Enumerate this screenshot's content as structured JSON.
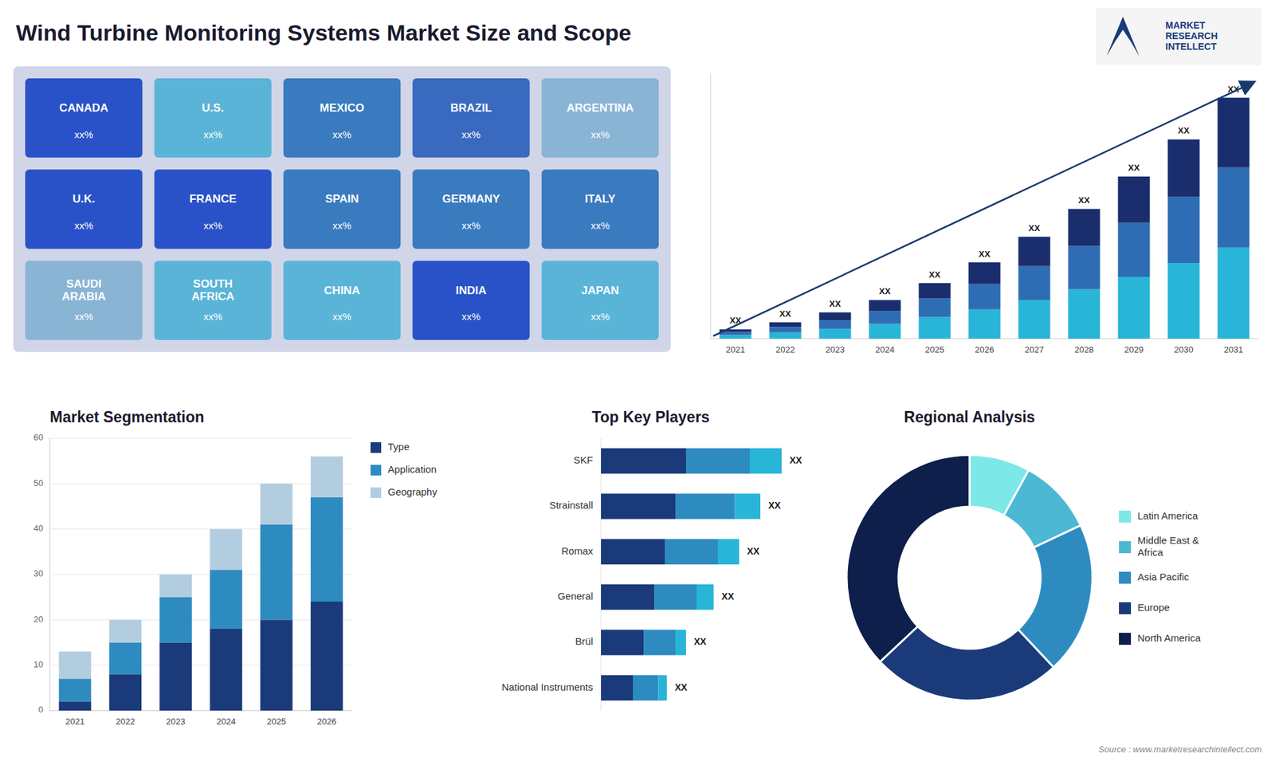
{
  "title": "Wind Turbine Monitoring Systems Market Size and Scope",
  "annotations": [
    "Source : www.marketresearchintellect.com",
    "MARKET\nRESEARCH\nINTELLECT"
  ],
  "chart_data": [
    {
      "type": "map",
      "color": "#d0d5e8",
      "categories": [
        "CANADA",
        "U.S.",
        "MEXICO",
        "BRAZIL",
        "ARGENTINA",
        "U.K.",
        "FRANCE",
        "SPAIN",
        "GERMANY",
        "ITALY",
        "SAUDI\nARABIA",
        "SOUTH\nAFRICA",
        "CHINA",
        "INDIA",
        "JAPAN"
      ],
      "colors": [
        "#2952c8",
        "#5ab4d8",
        "#3a7abf",
        "#3a6abf",
        "#8ab4d4",
        "#2952c8",
        "#2952c8",
        "#3a7abf",
        "#3a7abf",
        "#3a7abf",
        "#8ab4d4",
        "#5ab4d8",
        "#5ab4d8",
        "#2952c8",
        "#5ab4d8"
      ],
      "annotations": [
        "xx%",
        "xx%",
        "xx%",
        "xx%",
        "xx%",
        "xx%",
        "xx%",
        "xx%",
        "xx%",
        "xx%",
        "xx%",
        "xx%",
        "xx%",
        "xx%",
        "xx%"
      ]
    },
    {
      "type": "bar",
      "stacked": true,
      "categories": [
        "2021",
        "2022",
        "2023",
        "2024",
        "2025",
        "2026",
        "2027",
        "2028",
        "2029",
        "2030",
        "2031"
      ],
      "series": [
        {
          "color": "#29b5d8",
          "values": [
            1.2,
            2.0,
            3.2,
            4.8,
            7.0,
            9.5,
            12.5,
            16.0,
            20.0,
            24.5,
            29.5
          ]
        },
        {
          "color": "#2e6db4",
          "values": [
            1.0,
            1.8,
            2.8,
            4.2,
            6.0,
            8.2,
            11.0,
            14.0,
            17.5,
            21.5,
            26.0
          ]
        },
        {
          "color": "#1a2e6e",
          "values": [
            0.8,
            1.5,
            2.5,
            3.5,
            5.0,
            7.0,
            9.5,
            12.0,
            15.0,
            18.5,
            22.5
          ],
          "value_labels": [
            "XX",
            "XX",
            "XX",
            "XX",
            "XX",
            "XX",
            "XX",
            "XX",
            "XX",
            "XX",
            "XX"
          ]
        }
      ],
      "ylim": [
        0,
        86
      ],
      "tick_labels": "x"
    },
    {
      "type": "bar",
      "stacked": true,
      "title": "Market Segmentation",
      "categories": [
        "2021",
        "2022",
        "2023",
        "2024",
        "2025",
        "2026"
      ],
      "series": [
        {
          "name": "Type",
          "color": "#1a3a7a",
          "values": [
            2,
            8,
            15,
            18,
            20,
            24
          ]
        },
        {
          "name": "Application",
          "color": "#2e8bc0",
          "values": [
            5,
            7,
            10,
            13,
            21,
            23
          ]
        },
        {
          "name": "Geography",
          "color": "#b3cde0",
          "values": [
            6,
            5,
            5,
            9,
            9,
            9
          ]
        }
      ],
      "ylim": [
        0,
        60
      ],
      "yticks": [
        0,
        10,
        20,
        30,
        40,
        50,
        60
      ],
      "grid": true,
      "legend": "right"
    },
    {
      "type": "bar",
      "stacked": true,
      "orientation": "horizontal",
      "title": "Top Key Players",
      "categories": [
        "SKF",
        "Strainstall",
        "Romax",
        "General",
        "Brül",
        "National Instruments"
      ],
      "series": [
        {
          "color": "#1a3a7a",
          "values": [
            4.0,
            3.5,
            3.0,
            2.5,
            2.0,
            1.5
          ]
        },
        {
          "color": "#2e8bc0",
          "values": [
            3.0,
            2.8,
            2.5,
            2.0,
            1.5,
            1.2
          ]
        },
        {
          "color": "#29b5d8",
          "values": [
            1.5,
            1.2,
            1.0,
            0.8,
            0.5,
            0.4
          ],
          "value_labels": [
            "XX",
            "XX",
            "XX",
            "XX",
            "XX",
            "XX"
          ]
        }
      ],
      "xlim": [
        0,
        10
      ],
      "tick_labels": "y"
    },
    {
      "type": "pie",
      "title": "Regional Analysis",
      "categories": [
        "Latin America",
        "Middle East &\nAfrica",
        "Asia Pacific",
        "Europe",
        "North America"
      ],
      "values": [
        8,
        10,
        20,
        25,
        37
      ],
      "colors": [
        "#7de8e8",
        "#4db8d4",
        "#2e8bc0",
        "#1a3a7a",
        "#0d1f4a"
      ],
      "legend": "right"
    }
  ]
}
